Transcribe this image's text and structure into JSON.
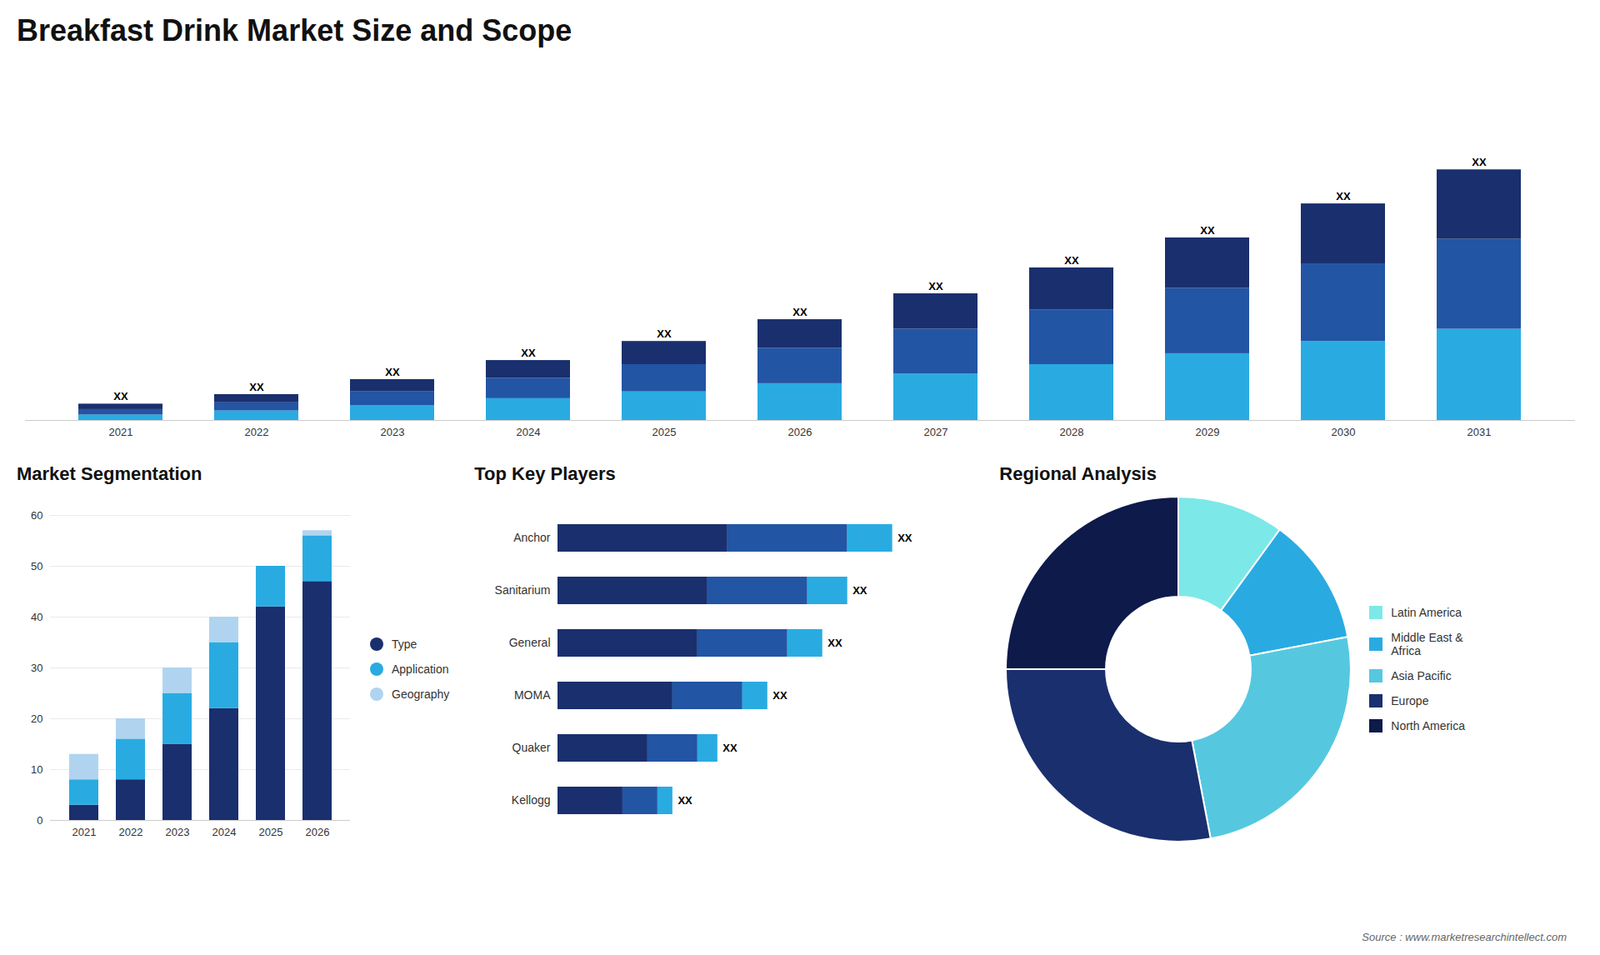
{
  "title": "Breakfast Drink Market Size and Scope",
  "annotations": [
    "Source : www.marketresearchintellect.com"
  ],
  "chart_data": [
    {
      "type": "bar",
      "stacked": true,
      "categories": [
        "2021",
        "2022",
        "2023",
        "2024",
        "2025",
        "2026",
        "2027",
        "2028",
        "2029",
        "2030",
        "2031"
      ],
      "series": [
        {
          "color": "#29abe2",
          "values": [
            2.0,
            3.5,
            5.5,
            8.0,
            10.5,
            13.5,
            17.0,
            20.5,
            24.5,
            29.0,
            33.5
          ]
        },
        {
          "color": "#2255a4",
          "values": [
            2.0,
            3.0,
            5.0,
            7.5,
            10.0,
            13.0,
            16.5,
            20.0,
            24.0,
            28.5,
            33.0
          ]
        },
        {
          "color": "#1a2f6e",
          "values": [
            2.0,
            3.0,
            4.5,
            6.5,
            8.5,
            10.5,
            13.0,
            15.5,
            18.5,
            22.0,
            25.5
          ]
        }
      ],
      "ylim": [
        0,
        124.2
      ],
      "tick_labels": "x",
      "grid": false,
      "annotations": [
        "XX",
        "XX",
        "XX",
        "XX",
        "XX",
        "XX",
        "XX",
        "XX",
        "XX",
        "XX",
        "XX"
      ]
    },
    {
      "type": "bar",
      "title": "Market Segmentation",
      "stacked": true,
      "categories": [
        "2021",
        "2022",
        "2023",
        "2024",
        "2025",
        "2026"
      ],
      "series": [
        {
          "name": "Type",
          "color": "#1a2f6e",
          "values": [
            3,
            8,
            15,
            22,
            42,
            47
          ]
        },
        {
          "name": "Application",
          "color": "#29abe2",
          "values": [
            5,
            8,
            10,
            13,
            8,
            9
          ]
        },
        {
          "name": "Geography",
          "color": "#b0d4f0",
          "values": [
            5,
            4,
            5,
            5,
            0,
            1
          ]
        }
      ],
      "ylim": [
        0,
        60
      ],
      "yticks": [
        0,
        10,
        20,
        30,
        40,
        50,
        60
      ],
      "grid": true,
      "legend": "right",
      "marker": "circle"
    },
    {
      "type": "bar",
      "title": "Top Key Players",
      "stacked": true,
      "orientation": "horizontal",
      "categories": [
        "Anchor",
        "Sanitarium",
        "General",
        "MOMA",
        "Quaker",
        "Kellogg"
      ],
      "series": [
        {
          "color": "#1a2f6e",
          "values": [
            34,
            30,
            28,
            23,
            18,
            13
          ]
        },
        {
          "color": "#2255a4",
          "values": [
            24,
            20,
            18,
            14,
            10,
            7
          ]
        },
        {
          "color": "#29abe2",
          "values": [
            9,
            8,
            7,
            5,
            4,
            3
          ]
        }
      ],
      "xlim": [
        0,
        81.74
      ],
      "tick_labels": "y",
      "grid": false,
      "annotations": [
        "XX",
        "XX",
        "XX",
        "XX",
        "XX",
        "XX"
      ]
    },
    {
      "type": "pie",
      "title": "Regional Analysis",
      "categories": [
        "Latin America",
        "Middle East &\nAfrica",
        "Asia Pacific",
        "Europe",
        "North America"
      ],
      "values": [
        10,
        12,
        25,
        28,
        25
      ],
      "colors": [
        "#7de8e8",
        "#29abe2",
        "#55c8e0",
        "#1a2f6e",
        "#0d1a4a"
      ],
      "legend": "right"
    }
  ]
}
